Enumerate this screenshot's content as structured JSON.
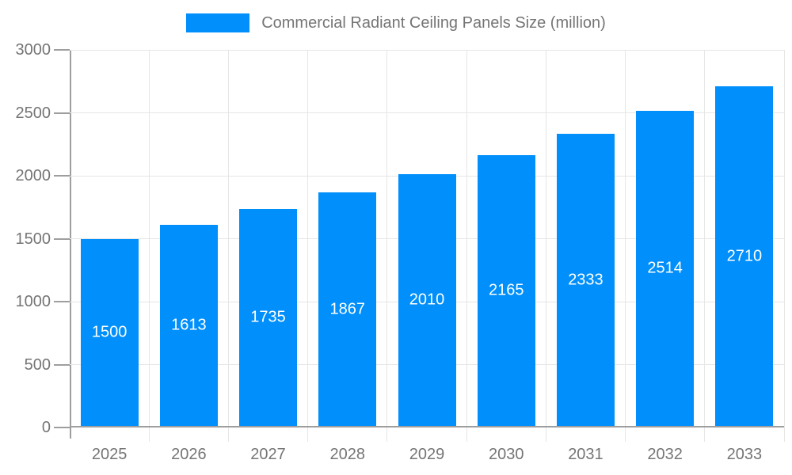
{
  "colors": {
    "bar": "#008FFB",
    "bar_value_label": "#ffffff",
    "axis_text": "#757575",
    "axis_line": "#9e9e9e",
    "gridline": "#e6e6e6",
    "background": "#ffffff"
  },
  "chart_data": {
    "type": "bar",
    "title": "Commercial Radiant Ceiling Panels Size (million)",
    "categories": [
      "2025",
      "2026",
      "2027",
      "2028",
      "2029",
      "2030",
      "2031",
      "2032",
      "2033"
    ],
    "series": [
      {
        "name": "Commercial Radiant Ceiling Panels Size (million)",
        "values": [
          1500,
          1613,
          1735,
          1867,
          2010,
          2165,
          2333,
          2514,
          2710
        ]
      }
    ],
    "xlabel": "",
    "ylabel": "",
    "ylim": [
      0,
      3000
    ],
    "yticks": [
      0,
      500,
      1000,
      1500,
      2000,
      2500,
      3000
    ],
    "grid": true,
    "legend_position": "top",
    "value_label_position": "inside-center"
  }
}
